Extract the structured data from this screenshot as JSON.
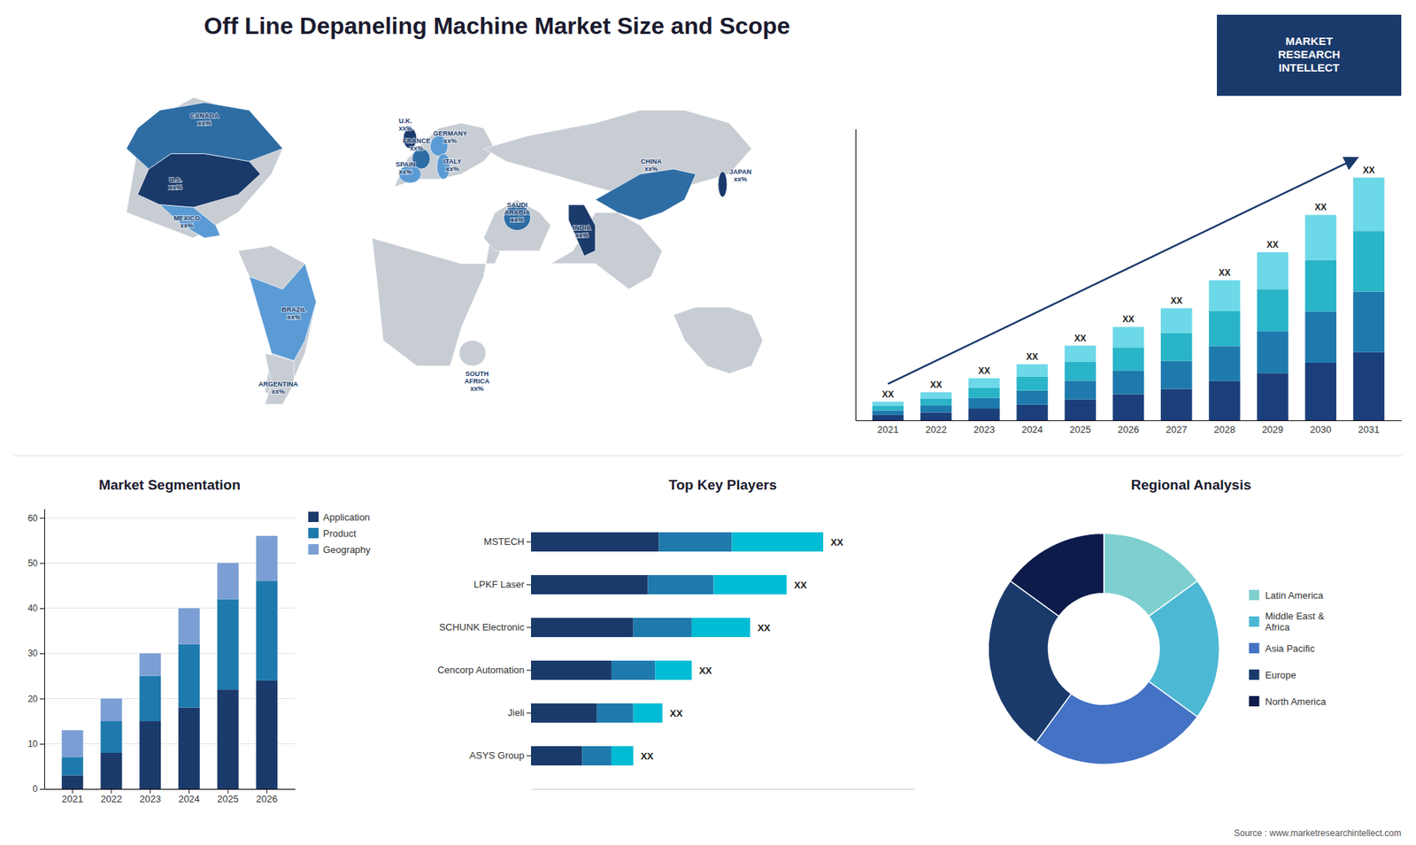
{
  "source": "Source : www.marketresearchintellect.com",
  "logo": "MARKET\nRESEARCH\nINTELLECT",
  "chart_data": [
    {
      "type": "map",
      "title": "Off Line Depaneling Machine Market Size and Scope",
      "xlim": [
        -180,
        180
      ],
      "ylim": [
        -62,
        85
      ],
      "tick_labels": false,
      "regions": [
        {
          "color": "#c8cdd4",
          "points": [
            [
              -130,
              25
            ],
            [
              -125,
              50
            ],
            [
              -120,
              60
            ],
            [
              -100,
              70
            ],
            [
              -80,
              65
            ],
            [
              -60,
              50
            ],
            [
              -65,
              40
            ],
            [
              -80,
              25
            ],
            [
              -100,
              15
            ],
            [
              -115,
              20
            ]
          ]
        },
        {
          "color": "#c8cdd4",
          "points": [
            [
              -80,
              10
            ],
            [
              -75,
              0
            ],
            [
              -70,
              -15
            ],
            [
              -65,
              -30
            ],
            [
              -68,
              -45
            ],
            [
              -60,
              -50
            ],
            [
              -50,
              -30
            ],
            [
              -45,
              -10
            ],
            [
              -50,
              5
            ],
            [
              -65,
              12
            ]
          ]
        },
        {
          "color": "#c8cdd4",
          "points": [
            [
              -10,
              35
            ],
            [
              0,
              38
            ],
            [
              10,
              38
            ],
            [
              20,
              40
            ],
            [
              30,
              45
            ],
            [
              35,
              50
            ],
            [
              30,
              58
            ],
            [
              20,
              60
            ],
            [
              10,
              58
            ],
            [
              0,
              50
            ],
            [
              -5,
              45
            ]
          ]
        },
        {
          "color": "#c8cdd4",
          "points": [
            [
              -20,
              15
            ],
            [
              0,
              10
            ],
            [
              20,
              5
            ],
            [
              35,
              5
            ],
            [
              40,
              15
            ],
            [
              35,
              25
            ],
            [
              30,
              0
            ],
            [
              20,
              -20
            ],
            [
              15,
              -35
            ],
            [
              0,
              -35
            ],
            [
              -15,
              -25
            ],
            [
              -18,
              0
            ]
          ]
        },
        {
          "color": "#c8cdd4",
          "points": [
            [
              30,
              50
            ],
            [
              50,
              55
            ],
            [
              80,
              60
            ],
            [
              100,
              65
            ],
            [
              120,
              65
            ],
            [
              140,
              60
            ],
            [
              150,
              50
            ],
            [
              140,
              40
            ],
            [
              120,
              35
            ],
            [
              100,
              30
            ],
            [
              80,
              35
            ],
            [
              60,
              40
            ],
            [
              40,
              45
            ]
          ]
        },
        {
          "color": "#c8cdd4",
          "points": [
            [
              30,
              15
            ],
            [
              35,
              25
            ],
            [
              45,
              30
            ],
            [
              55,
              25
            ],
            [
              60,
              20
            ],
            [
              55,
              10
            ],
            [
              45,
              10
            ],
            [
              35,
              10
            ]
          ]
        },
        {
          "color": "#c8cdd4",
          "points": [
            [
              60,
              5
            ],
            [
              70,
              10
            ],
            [
              80,
              25
            ],
            [
              90,
              25
            ],
            [
              100,
              20
            ],
            [
              110,
              10
            ],
            [
              105,
              0
            ],
            [
              95,
              -5
            ],
            [
              80,
              5
            ],
            [
              70,
              5
            ]
          ]
        },
        {
          "color": "#c8cdd4",
          "points": [
            [
              115,
              -15
            ],
            [
              120,
              -25
            ],
            [
              130,
              -35
            ],
            [
              140,
              -38
            ],
            [
              150,
              -35
            ],
            [
              155,
              -25
            ],
            [
              150,
              -15
            ],
            [
              140,
              -12
            ],
            [
              125,
              -12
            ]
          ]
        },
        {
          "color": "#1a3a6b",
          "points": [
            [
              -125,
              32
            ],
            [
              -120,
              42
            ],
            [
              -110,
              48
            ],
            [
              -95,
              48
            ],
            [
              -75,
              45
            ],
            [
              -70,
              40
            ],
            [
              -80,
              32
            ],
            [
              -100,
              27
            ],
            [
              -115,
              28
            ]
          ]
        },
        {
          "color": "#2e6da4",
          "points": [
            [
              -130,
              50
            ],
            [
              -125,
              58
            ],
            [
              -115,
              65
            ],
            [
              -95,
              68
            ],
            [
              -75,
              65
            ],
            [
              -60,
              50
            ],
            [
              -75,
              45
            ],
            [
              -95,
              48
            ],
            [
              -110,
              48
            ],
            [
              -120,
              42
            ]
          ]
        },
        {
          "color": "#5b9bd5",
          "points": [
            [
              -115,
              28
            ],
            [
              -100,
              27
            ],
            [
              -90,
              20
            ],
            [
              -88,
              16
            ],
            [
              -95,
              15
            ],
            [
              -105,
              20
            ]
          ]
        },
        {
          "color": "#5b9bd5",
          "points": [
            [
              -60,
              -5
            ],
            [
              -50,
              5
            ],
            [
              -45,
              -10
            ],
            [
              -50,
              -25
            ],
            [
              -55,
              -33
            ],
            [
              -65,
              -30
            ],
            [
              -70,
              -15
            ],
            [
              -75,
              0
            ]
          ]
        },
        {
          "color": "#c8cdd4",
          "points": [
            [
              -68,
              -30
            ],
            [
              -65,
              -42
            ],
            [
              -68,
              -50
            ],
            [
              -60,
              -50
            ],
            [
              -55,
              -42
            ],
            [
              -55,
              -33
            ]
          ]
        },
        {
          "color": "#1a3a6b",
          "center": [
            -3,
            54
          ],
          "radius": [
            3,
            4
          ]
        },
        {
          "color": "#2e6da4",
          "center": [
            2,
            46
          ],
          "radius": [
            4,
            4
          ]
        },
        {
          "color": "#5b9bd5",
          "center": [
            -3,
            40
          ],
          "radius": [
            5,
            3.5
          ]
        },
        {
          "color": "#5b9bd5",
          "center": [
            10,
            51
          ],
          "radius": [
            4,
            4
          ]
        },
        {
          "color": "#5b9bd5",
          "center": [
            12,
            43
          ],
          "radius": [
            3,
            5
          ]
        },
        {
          "color": "#2e6da4",
          "center": [
            45,
            23
          ],
          "radius": [
            6,
            5
          ]
        },
        {
          "color": "#c8cdd4",
          "center": [
            25,
            -30
          ],
          "radius": [
            6,
            5
          ]
        },
        {
          "color": "#2e6da4",
          "points": [
            [
              80,
              30
            ],
            [
              90,
              35
            ],
            [
              100,
              40
            ],
            [
              115,
              42
            ],
            [
              125,
              40
            ],
            [
              120,
              30
            ],
            [
              110,
              25
            ],
            [
              100,
              22
            ],
            [
              90,
              25
            ]
          ]
        },
        {
          "color": "#1a3a6b",
          "points": [
            [
              70,
              28
            ],
            [
              75,
              28
            ],
            [
              80,
              20
            ],
            [
              80,
              10
            ],
            [
              75,
              8
            ],
            [
              68,
              22
            ],
            [
              68,
              28
            ]
          ]
        },
        {
          "color": "#1a3a6b",
          "center": [
            137,
            36
          ],
          "radius": [
            2,
            5
          ]
        }
      ],
      "annotations": [
        {
          "text": "CANADA\nxx%",
          "x": -95,
          "y": 62
        },
        {
          "text": "U.S.\nxx%",
          "x": -108,
          "y": 37
        },
        {
          "text": "MEXICO\nxx%",
          "x": -103,
          "y": 22
        },
        {
          "text": "BRAZIL\nxx%",
          "x": -55,
          "y": -14
        },
        {
          "text": "ARGENTINA\nxx%",
          "x": -62,
          "y": -43
        },
        {
          "text": "U.K.\nxx%",
          "x": -5,
          "y": 60
        },
        {
          "text": "FRANCE\nxx%",
          "x": 0,
          "y": 52
        },
        {
          "text": "SPAIN\nxx%",
          "x": -5,
          "y": 43
        },
        {
          "text": "GERMANY\nxx%",
          "x": 15,
          "y": 55
        },
        {
          "text": "ITALY\nxx%",
          "x": 16,
          "y": 44
        },
        {
          "text": "SAUDI\nARABIA\nxx%",
          "x": 45,
          "y": 27
        },
        {
          "text": "SOUTH\nAFRICA\nxx%",
          "x": 27,
          "y": -39
        },
        {
          "text": "CHINA\nxx%",
          "x": 105,
          "y": 44
        },
        {
          "text": "INDIA\nxx%",
          "x": 74,
          "y": 18
        },
        {
          "text": "JAPAN\nxx%",
          "x": 145,
          "y": 40
        }
      ]
    },
    {
      "type": "bar",
      "stacked": true,
      "categories": [
        "2021",
        "2022",
        "2023",
        "2024",
        "2025",
        "2026",
        "2027",
        "2028",
        "2029",
        "2030",
        "2031"
      ],
      "series": [
        {
          "color": "#1b3f7a",
          "values": [
            0.56,
            0.84,
            1.26,
            1.68,
            2.24,
            2.8,
            3.36,
            4.2,
            5.04,
            6.16,
            7.28
          ]
        },
        {
          "color": "#1e7aad",
          "values": [
            0.5,
            0.75,
            1.125,
            1.5,
            2,
            2.5,
            3,
            3.75,
            4.5,
            5.5,
            6.5
          ]
        },
        {
          "color": "#29b4c8",
          "values": [
            0.5,
            0.75,
            1.125,
            1.5,
            2,
            2.5,
            3,
            3.75,
            4.5,
            5.5,
            6.5
          ]
        },
        {
          "color": "#6dd8e8",
          "values": [
            0.44,
            0.66,
            0.99,
            1.32,
            1.76,
            2.2,
            2.64,
            3.3,
            3.96,
            4.84,
            5.72
          ]
        }
      ],
      "ylim": [
        0,
        31.2
      ],
      "tick_labels": "x",
      "annotations": [
        "XX",
        "XX",
        "XX",
        "XX",
        "XX",
        "XX",
        "XX",
        "XX",
        "XX",
        "XX",
        "XX"
      ]
    },
    {
      "type": "bar",
      "stacked": true,
      "title": "Market Segmentation",
      "categories": [
        "2021",
        "2022",
        "2023",
        "2024",
        "2025",
        "2026"
      ],
      "series": [
        {
          "name": "Application",
          "color": "#1a3a6b",
          "values": [
            3,
            8,
            15,
            18,
            22,
            24
          ]
        },
        {
          "name": "Product",
          "color": "#1e7aad",
          "values": [
            4,
            7,
            10,
            14,
            20,
            22
          ]
        },
        {
          "name": "Geography",
          "color": "#7b9fd4",
          "values": [
            6,
            5,
            5,
            8,
            8,
            10
          ]
        }
      ],
      "ylim": [
        0,
        62
      ],
      "yticks": [
        0,
        10,
        20,
        30,
        40,
        50,
        60
      ],
      "grid": true,
      "legend": "right"
    },
    {
      "type": "bar",
      "stacked": true,
      "orientation": "horizontal",
      "title": "Top Key Players",
      "categories": [
        "MSTECH",
        "LPKF Laser",
        "SCHUNK Electronic",
        "Cencorp Automation",
        "Jieli",
        "ASYS Group"
      ],
      "series": [
        {
          "color": "#1a3a6b",
          "values": [
            35,
            32,
            28,
            22,
            18,
            14
          ]
        },
        {
          "color": "#1e7aad",
          "values": [
            20,
            18,
            16,
            12,
            10,
            8
          ]
        },
        {
          "color": "#00bcd4",
          "values": [
            25,
            20,
            16,
            10,
            8,
            6
          ]
        }
      ],
      "xlim": [
        0,
        105
      ],
      "tick_labels": "y",
      "annotations": [
        "XX",
        "XX",
        "XX",
        "XX",
        "XX",
        "XX"
      ]
    },
    {
      "type": "pie",
      "title": "Regional Analysis",
      "categories": [
        "Latin America",
        "Middle East &\nAfrica",
        "Asia Pacific",
        "Europe",
        "North America"
      ],
      "values": [
        15,
        20,
        25,
        25,
        15
      ],
      "colors": [
        "#7ecfcf",
        "#4db8d4",
        "#4472c4",
        "#1a3a6b",
        "#0d1b4b"
      ],
      "legend": "right"
    }
  ]
}
